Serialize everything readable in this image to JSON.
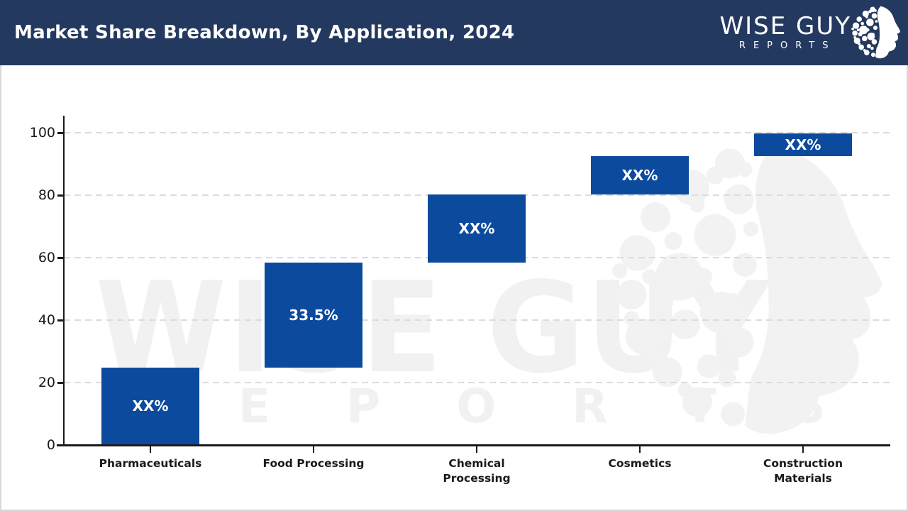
{
  "header": {
    "title": "Market Share Breakdown, By Application, 2024",
    "logo": {
      "name": "WISE GUY",
      "sub": "REPORTS"
    },
    "colors": {
      "background": "#24395F",
      "text": "#FFFFFF"
    }
  },
  "watermark": {
    "line1": "WISE GUY",
    "line2": "R E P O R T S"
  },
  "chart_data": {
    "type": "bar",
    "subtype": "waterfall",
    "title": "Market Share Breakdown, By Application, 2024",
    "categories": [
      "Pharmaceuticals",
      "Food Processing",
      "Chemical Processing",
      "Cosmetics",
      "Construction Materials"
    ],
    "tick_labels": [
      "Pharmaceuticals",
      "Food Processing",
      "Chemical\nProcessing",
      "Cosmetics",
      "Construction\nMaterials"
    ],
    "segments": [
      {
        "category": "Pharmaceuticals",
        "start": 0,
        "end": 24.8,
        "value_label": "XX%"
      },
      {
        "category": "Food Processing",
        "start": 24.8,
        "end": 58.3,
        "value_label": "33.5%"
      },
      {
        "category": "Chemical Processing",
        "start": 58.3,
        "end": 80.2,
        "value_label": "XX%"
      },
      {
        "category": "Cosmetics",
        "start": 80.2,
        "end": 92.6,
        "value_label": "XX%"
      },
      {
        "category": "Construction Materials",
        "start": 92.6,
        "end": 99.7,
        "value_label": "XX%"
      }
    ],
    "yticks": [
      0,
      20,
      40,
      60,
      80,
      100
    ],
    "ylim": [
      0,
      105.5
    ],
    "grid": {
      "horizontal": true,
      "style": "dashed",
      "color": "#DCDCDC"
    },
    "legend": null,
    "bar_color": "#0C4A9E",
    "bar_label_color": "#FFFFFF",
    "axis_color": "#1A1A1A"
  }
}
